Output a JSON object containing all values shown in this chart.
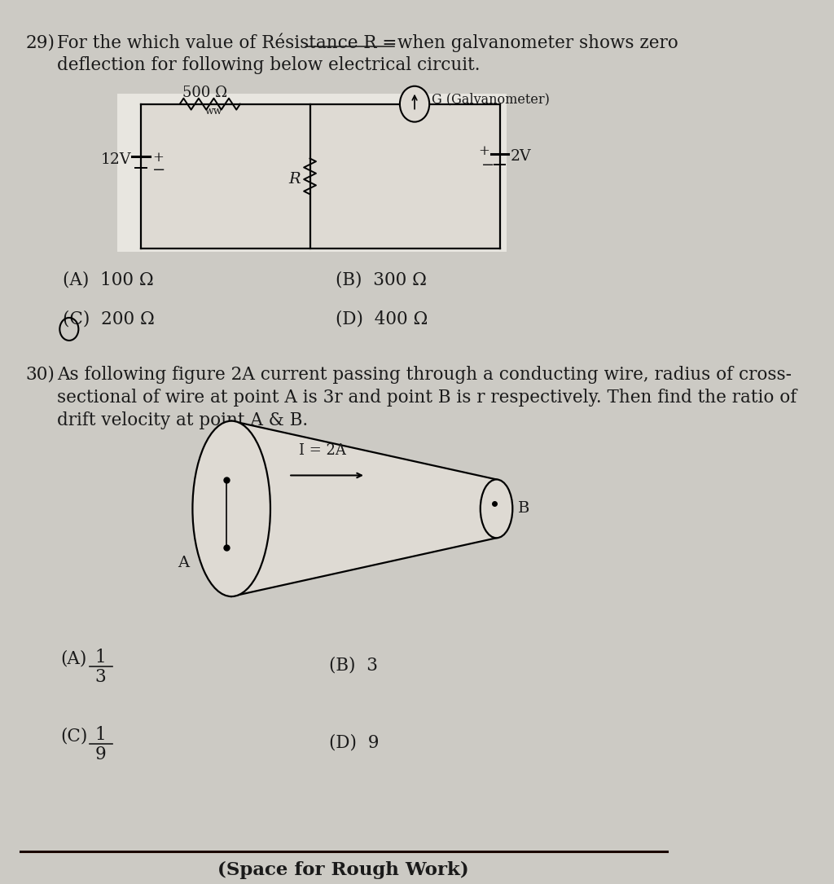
{
  "bg_color": "#cccac4",
  "text_color": "#1a1a1a",
  "q29_number": "29)",
  "q29_A": "(A)  100 Ω",
  "q29_B": "(B)  300 Ω",
  "q29_C": "(C)  200 Ω",
  "q29_D": "(D)  400 Ω",
  "q30_number": "30)",
  "q30_A_num": "1",
  "q30_A_den": "3",
  "q30_B": "(B)  3",
  "q30_C_num": "1",
  "q30_C_den": "9",
  "q30_D": "(D)  9",
  "footer": "(Space for Rough Work)"
}
